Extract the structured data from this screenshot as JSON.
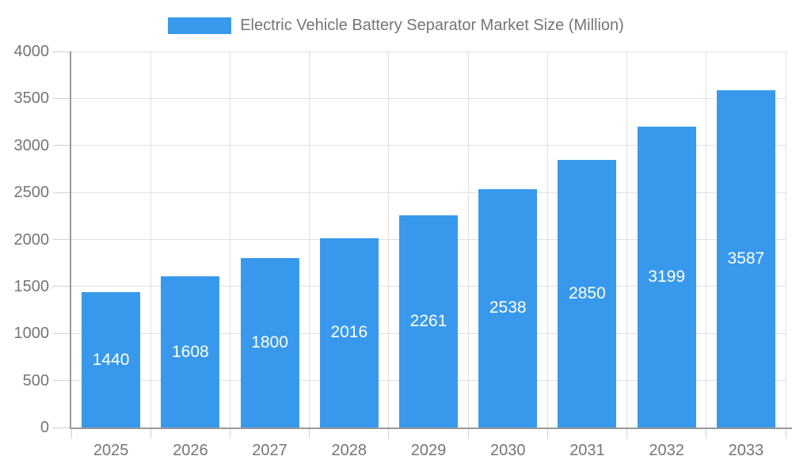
{
  "legend": {
    "label": "Electric Vehicle Battery Separator Market Size (Million)"
  },
  "chart_data": {
    "type": "bar",
    "title": "Electric Vehicle Battery Separator Market Size (Million)",
    "categories": [
      "2025",
      "2026",
      "2027",
      "2028",
      "2029",
      "2030",
      "2031",
      "2032",
      "2033"
    ],
    "values": [
      1440,
      1608,
      1800,
      2016,
      2261,
      2538,
      2850,
      3199,
      3587
    ],
    "xlabel": "",
    "ylabel": "",
    "ylim": [
      0,
      4000
    ],
    "yticks": [
      0,
      500,
      1000,
      1500,
      2000,
      2500,
      3000,
      3500,
      4000
    ],
    "grid": true,
    "legend_position": "top",
    "value_labels": "inside-center",
    "colors": {
      "bar": "#3899EC",
      "value_label": "#FFFFFF",
      "axis_text": "#757575",
      "gridline": "#E0E0E0",
      "axis_line": "#999999"
    }
  }
}
